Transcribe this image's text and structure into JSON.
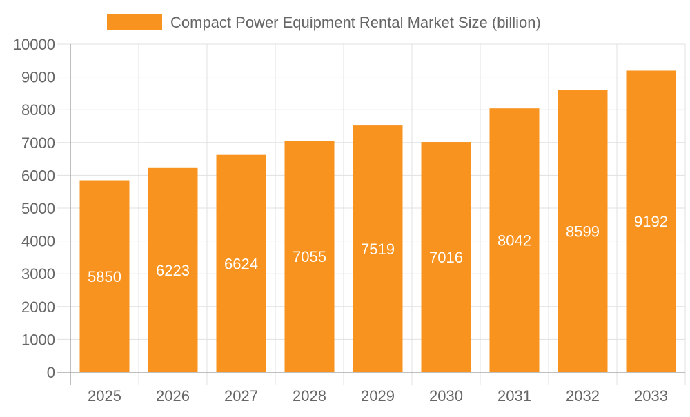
{
  "chart_data": {
    "type": "bar",
    "title": "",
    "xlabel": "",
    "ylabel": "",
    "categories": [
      "2025",
      "2026",
      "2027",
      "2028",
      "2029",
      "2030",
      "2031",
      "2032",
      "2033"
    ],
    "series": [
      {
        "name": "Compact Power Equipment Rental Market Size (billion)",
        "values": [
          5850,
          6223,
          6624,
          7055,
          7519,
          7016,
          8042,
          8599,
          9192
        ],
        "color": "#f7931e"
      }
    ],
    "ylim": [
      0,
      10000
    ],
    "yticks": [
      0,
      1000,
      2000,
      3000,
      4000,
      5000,
      6000,
      7000,
      8000,
      9000,
      10000
    ],
    "grid": true,
    "legend": "top-center",
    "data_labels": true
  }
}
